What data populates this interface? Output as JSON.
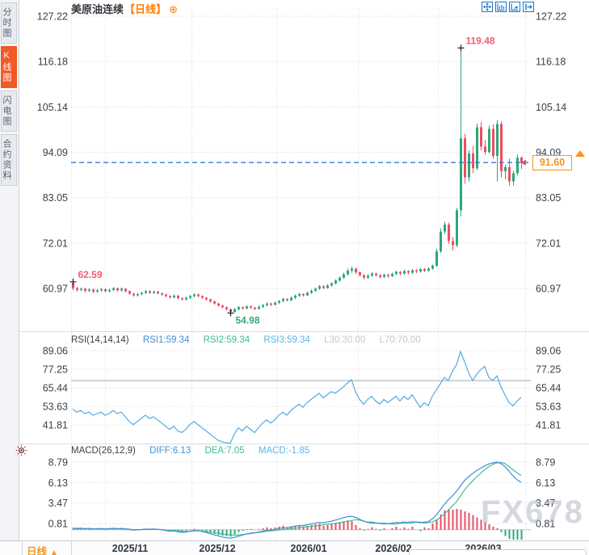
{
  "header": {
    "symbol": "美原油连续",
    "period_tag": "【日线】",
    "add_icon": "⊕"
  },
  "sidebar": {
    "tabs": [
      {
        "label": "分时图",
        "active": false
      },
      {
        "label": "K线图",
        "active": true
      },
      {
        "label": "闪电图",
        "active": false
      },
      {
        "label": "合约资料",
        "active": false
      }
    ]
  },
  "toolbar": {
    "icons": [
      "pan-move",
      "scale-left-axis",
      "scale-right-axis",
      "jump-to-latest"
    ]
  },
  "rsi_header": {
    "name": "RSI(14,14,14)",
    "rsi1": "RSI1:59.34",
    "rsi2": "RSI2:59.34",
    "rsi3": "RSI3:59.34",
    "l30": "L30:30.00",
    "l70": "L70:70.00"
  },
  "macd_header": {
    "name": "MACD(26,12,9)",
    "diff": "DIFF:6.13",
    "dea": "DEA:7.05",
    "macd": "MACD:-1.85"
  },
  "price_line": {
    "value": "91.60"
  },
  "bottom_bar": {
    "period": "日线",
    "arrow": "▲"
  },
  "watermark": "FX678",
  "colors": {
    "up": "#2ca878",
    "down": "#e94f63",
    "rsi_line": "#54aadd",
    "diff_line": "#3d8fd8",
    "dea_line": "#48bb90",
    "accent_orange": "#f7941d",
    "title_orange": "#ff7e00",
    "dashed_price": "#2e7fd9",
    "toolbar_blue": "#1a78c8",
    "annotation_pink": "#ef5e74",
    "annotation_green": "#33a97e",
    "active_tab": "#f15a24"
  },
  "chart_data": {
    "type": "candlestick+indicators",
    "symbol": "美原油连续",
    "interval": "日线",
    "x_months": [
      "2025/11",
      "2025/12",
      "2026/01",
      "2026/02",
      "2026/03"
    ],
    "price_axis": [
      127.22,
      116.18,
      105.14,
      94.09,
      83.05,
      72.01,
      60.97
    ],
    "last_price": 91.6,
    "annotations": [
      {
        "text": "62.59",
        "price": 62.59,
        "candle": 0,
        "placement": "above",
        "color": "pink"
      },
      {
        "text": "54.98",
        "price": 54.98,
        "candle": 39,
        "placement": "below",
        "color": "green"
      },
      {
        "text": "119.48",
        "price": 119.48,
        "candle": 96,
        "placement": "above",
        "color": "pink"
      }
    ],
    "candles": [
      [
        62.3,
        62.59,
        60.5,
        61.0
      ],
      [
        61.0,
        61.4,
        60.2,
        60.6
      ],
      [
        60.6,
        61.2,
        60.3,
        60.9
      ],
      [
        60.9,
        61.1,
        60.0,
        60.4
      ],
      [
        60.4,
        61.0,
        60.1,
        60.7
      ],
      [
        60.7,
        60.9,
        59.8,
        60.2
      ],
      [
        60.2,
        60.8,
        59.9,
        60.5
      ],
      [
        60.5,
        61.1,
        60.2,
        60.8
      ],
      [
        60.8,
        61.0,
        60.0,
        60.3
      ],
      [
        60.3,
        60.9,
        60.0,
        60.6
      ],
      [
        60.6,
        61.3,
        60.3,
        61.0
      ],
      [
        61.0,
        61.2,
        60.2,
        60.5
      ],
      [
        60.5,
        61.2,
        60.2,
        60.9
      ],
      [
        60.9,
        61.0,
        60.0,
        60.3
      ],
      [
        60.3,
        60.5,
        59.4,
        59.7
      ],
      [
        59.7,
        59.9,
        59.0,
        59.3
      ],
      [
        59.3,
        59.9,
        59.0,
        59.6
      ],
      [
        59.6,
        60.2,
        59.3,
        59.9
      ],
      [
        59.9,
        60.6,
        59.6,
        60.3
      ],
      [
        60.3,
        60.5,
        59.6,
        59.9
      ],
      [
        59.9,
        60.5,
        59.6,
        60.2
      ],
      [
        60.2,
        60.4,
        59.5,
        59.8
      ],
      [
        59.8,
        60.0,
        59.2,
        59.5
      ],
      [
        59.5,
        59.7,
        58.8,
        59.1
      ],
      [
        59.1,
        59.3,
        58.5,
        58.8
      ],
      [
        58.8,
        59.5,
        58.5,
        59.2
      ],
      [
        59.2,
        59.4,
        58.3,
        58.6
      ],
      [
        58.6,
        58.8,
        58.0,
        58.3
      ],
      [
        58.3,
        59.0,
        58.0,
        58.7
      ],
      [
        58.7,
        59.4,
        58.4,
        59.1
      ],
      [
        59.1,
        59.8,
        58.8,
        59.5
      ],
      [
        59.5,
        59.7,
        58.8,
        59.1
      ],
      [
        59.1,
        59.3,
        58.4,
        58.7
      ],
      [
        58.7,
        58.9,
        58.0,
        58.3
      ],
      [
        58.3,
        58.5,
        57.5,
        57.8
      ],
      [
        57.8,
        58.0,
        57.0,
        57.3
      ],
      [
        57.3,
        57.5,
        56.5,
        56.8
      ],
      [
        56.8,
        57.0,
        56.1,
        56.4
      ],
      [
        56.4,
        56.6,
        55.6,
        55.9
      ],
      [
        55.9,
        56.1,
        54.98,
        55.3
      ],
      [
        55.3,
        56.2,
        55.1,
        55.9
      ],
      [
        55.9,
        56.7,
        55.6,
        56.4
      ],
      [
        56.4,
        56.6,
        55.8,
        56.1
      ],
      [
        56.1,
        56.9,
        55.9,
        56.6
      ],
      [
        56.6,
        56.8,
        56.0,
        56.3
      ],
      [
        56.3,
        56.5,
        55.7,
        56.0
      ],
      [
        56.0,
        56.8,
        55.8,
        56.5
      ],
      [
        56.5,
        57.2,
        56.2,
        56.9
      ],
      [
        56.9,
        57.6,
        56.6,
        57.3
      ],
      [
        57.3,
        57.5,
        56.7,
        57.0
      ],
      [
        57.0,
        57.8,
        56.8,
        57.5
      ],
      [
        57.5,
        58.2,
        57.2,
        57.9
      ],
      [
        57.9,
        58.7,
        57.6,
        58.4
      ],
      [
        58.4,
        58.6,
        57.8,
        58.1
      ],
      [
        58.1,
        59.0,
        57.9,
        58.7
      ],
      [
        58.7,
        59.5,
        58.4,
        59.2
      ],
      [
        59.2,
        59.9,
        58.9,
        59.6
      ],
      [
        59.6,
        59.8,
        59.0,
        59.3
      ],
      [
        59.3,
        60.2,
        59.1,
        59.9
      ],
      [
        59.9,
        60.7,
        59.6,
        60.4
      ],
      [
        60.4,
        61.2,
        60.1,
        60.9
      ],
      [
        60.9,
        61.8,
        60.6,
        61.5
      ],
      [
        61.5,
        61.7,
        60.8,
        61.1
      ],
      [
        61.1,
        62.0,
        60.9,
        61.7
      ],
      [
        61.7,
        62.5,
        61.4,
        62.2
      ],
      [
        62.2,
        63.2,
        61.9,
        62.9
      ],
      [
        62.9,
        63.9,
        62.6,
        63.6
      ],
      [
        63.6,
        64.8,
        63.3,
        64.4
      ],
      [
        64.4,
        65.8,
        64.1,
        65.3
      ],
      [
        65.3,
        66.3,
        64.8,
        65.8
      ],
      [
        65.8,
        66.0,
        64.5,
        64.9
      ],
      [
        64.9,
        65.1,
        63.8,
        64.2
      ],
      [
        64.2,
        64.4,
        63.2,
        63.6
      ],
      [
        63.6,
        64.4,
        63.3,
        64.1
      ],
      [
        64.1,
        64.9,
        63.8,
        64.6
      ],
      [
        64.6,
        64.8,
        63.8,
        64.2
      ],
      [
        64.2,
        64.4,
        63.4,
        63.8
      ],
      [
        63.8,
        64.6,
        63.5,
        64.3
      ],
      [
        64.3,
        64.5,
        63.6,
        64.0
      ],
      [
        64.0,
        64.8,
        63.7,
        64.5
      ],
      [
        64.5,
        65.3,
        64.2,
        65.0
      ],
      [
        65.0,
        65.2,
        64.2,
        64.6
      ],
      [
        64.6,
        65.5,
        64.3,
        65.2
      ],
      [
        65.2,
        65.4,
        64.4,
        64.8
      ],
      [
        64.8,
        65.7,
        64.5,
        65.4
      ],
      [
        65.4,
        65.6,
        64.7,
        65.1
      ],
      [
        65.1,
        65.9,
        64.8,
        65.7
      ],
      [
        65.7,
        65.9,
        64.9,
        65.3
      ],
      [
        65.3,
        66.1,
        65.0,
        65.8
      ],
      [
        65.8,
        66.8,
        65.5,
        66.5
      ],
      [
        66.5,
        70.6,
        66.2,
        70.0
      ],
      [
        70.0,
        75.6,
        69.6,
        74.8
      ],
      [
        74.8,
        77.2,
        74.2,
        76.5
      ],
      [
        76.5,
        77.0,
        71.8,
        72.5
      ],
      [
        72.5,
        73.5,
        70.2,
        71.5
      ],
      [
        71.5,
        80.6,
        71.0,
        80.0
      ],
      [
        80.0,
        119.48,
        78.5,
        97.5
      ],
      [
        97.5,
        98.6,
        86.5,
        88.0
      ],
      [
        88.0,
        94.6,
        87.0,
        93.8
      ],
      [
        93.8,
        95.6,
        89.0,
        90.2
      ],
      [
        90.2,
        101.1,
        89.8,
        100.2
      ],
      [
        100.2,
        101.5,
        94.5,
        95.5
      ],
      [
        95.5,
        97.1,
        93.5,
        94.2
      ],
      [
        94.2,
        100.6,
        93.8,
        99.8
      ],
      [
        99.8,
        100.9,
        92.5,
        93.2
      ],
      [
        93.2,
        101.9,
        87.0,
        101.0
      ],
      [
        101.0,
        101.6,
        88.0,
        89.5
      ],
      [
        89.5,
        91.1,
        87.5,
        90.5
      ],
      [
        90.5,
        92.6,
        85.9,
        87.0
      ],
      [
        87.0,
        89.6,
        86.0,
        89.0
      ],
      [
        89.0,
        93.6,
        88.5,
        92.8
      ],
      [
        92.8,
        93.1,
        90.0,
        91.6
      ]
    ],
    "rsi": {
      "params": "(14,14,14)",
      "rsi1": 59.34,
      "rsi2": 59.34,
      "rsi3": 59.34,
      "l30": 30.0,
      "l70": 70.0,
      "axis": [
        89.06,
        77.25,
        65.44,
        53.63,
        41.81
      ],
      "values": [
        52,
        50,
        51,
        49,
        50,
        48,
        49,
        50,
        48,
        49,
        51,
        49,
        50,
        47,
        44,
        42,
        44,
        46,
        48,
        46,
        47,
        45,
        43,
        41,
        39,
        41,
        38,
        37,
        39,
        42,
        44,
        42,
        40,
        38,
        36,
        34,
        32,
        31,
        30.5,
        30,
        36,
        40,
        38,
        41,
        39,
        37,
        40,
        43,
        45,
        43,
        45,
        48,
        50,
        48,
        51,
        53,
        55,
        53,
        56,
        58,
        60,
        62,
        59,
        61,
        63,
        62,
        64,
        66,
        68.5,
        70.5,
        63,
        58,
        55,
        58,
        60,
        57,
        55,
        58,
        56,
        58,
        60,
        57,
        60,
        58,
        61,
        57,
        53,
        56,
        54,
        60,
        64,
        68,
        72,
        70,
        76,
        80,
        88.5,
        82,
        75,
        70,
        74,
        77,
        79,
        72,
        70,
        73,
        66,
        61,
        56,
        54,
        57,
        59.3
      ]
    },
    "macd": {
      "params": "(26,12,9)",
      "diff": 6.13,
      "dea": 7.05,
      "macd": -1.85,
      "axis": [
        8.79,
        6.13,
        3.47,
        0.81
      ],
      "diff_values": [
        0.2,
        0.18,
        0.2,
        0.15,
        0.17,
        0.12,
        0.14,
        0.16,
        0.12,
        0.14,
        0.18,
        0.15,
        0.17,
        0.12,
        0.05,
        -0.05,
        -0.02,
        0.02,
        0.08,
        0.06,
        0.1,
        0.05,
        0,
        -0.1,
        -0.2,
        -0.15,
        -0.25,
        -0.35,
        -0.3,
        -0.2,
        -0.1,
        -0.12,
        -0.22,
        -0.35,
        -0.5,
        -0.65,
        -0.8,
        -0.95,
        -1.05,
        -1.1,
        -1,
        -0.85,
        -0.7,
        -0.55,
        -0.45,
        -0.4,
        -0.3,
        -0.18,
        -0.05,
        -0.05,
        0.05,
        0.15,
        0.25,
        0.25,
        0.35,
        0.45,
        0.55,
        0.55,
        0.65,
        0.75,
        0.85,
        0.95,
        0.9,
        1,
        1.1,
        1.25,
        1.4,
        1.55,
        1.7,
        1.75,
        1.6,
        1.35,
        1.1,
        1,
        1,
        0.9,
        0.8,
        0.85,
        0.8,
        0.85,
        0.95,
        0.9,
        1,
        0.95,
        1.05,
        1,
        0.9,
        1,
        1.05,
        1.4,
        1.9,
        2.6,
        3.3,
        3.9,
        4.4,
        5,
        5.7,
        6.4,
        6.9,
        7.3,
        7.7,
        8,
        8.3,
        8.55,
        8.7,
        8.8,
        8.6,
        8.2,
        7.6,
        7,
        6.5,
        6.13
      ],
      "hist_values": [
        0.15,
        0.1,
        0.12,
        0.08,
        0.1,
        0.06,
        0.08,
        0.1,
        0.06,
        0.08,
        0.12,
        0.09,
        0.1,
        0.05,
        -0.05,
        -0.12,
        -0.06,
        0.02,
        0.08,
        0.05,
        0.1,
        0.03,
        -0.04,
        -0.12,
        -0.2,
        -0.1,
        -0.22,
        -0.3,
        -0.15,
        0.05,
        0.12,
        0.04,
        -0.1,
        -0.25,
        -0.4,
        -0.55,
        -0.68,
        -0.78,
        -0.85,
        -0.9,
        -0.6,
        -0.3,
        -0.15,
        0.05,
        0.1,
        0.02,
        0.1,
        0.2,
        0.3,
        0.2,
        0.3,
        0.4,
        0.5,
        0.35,
        0.45,
        0.55,
        0.6,
        0.4,
        0.5,
        0.6,
        0.7,
        0.8,
        0.5,
        0.6,
        0.7,
        0.9,
        1,
        1.1,
        1.2,
        1.1,
        0.6,
        0.2,
        -0.1,
        0.1,
        0.3,
        0.1,
        -0.1,
        0.2,
        0,
        0.2,
        0.4,
        0.1,
        0.3,
        0.1,
        0.4,
        0,
        -0.2,
        0.3,
        0.2,
        0.8,
        1.3,
        2,
        2.5,
        2.7,
        2.6,
        2.7,
        2.6,
        2.4,
        2.2,
        1.9,
        1.6,
        1.3,
        1,
        0.7,
        0.4,
        0.2,
        -0.3,
        -0.8,
        -1.2,
        -1.6,
        -1.8,
        -1.85
      ]
    }
  }
}
